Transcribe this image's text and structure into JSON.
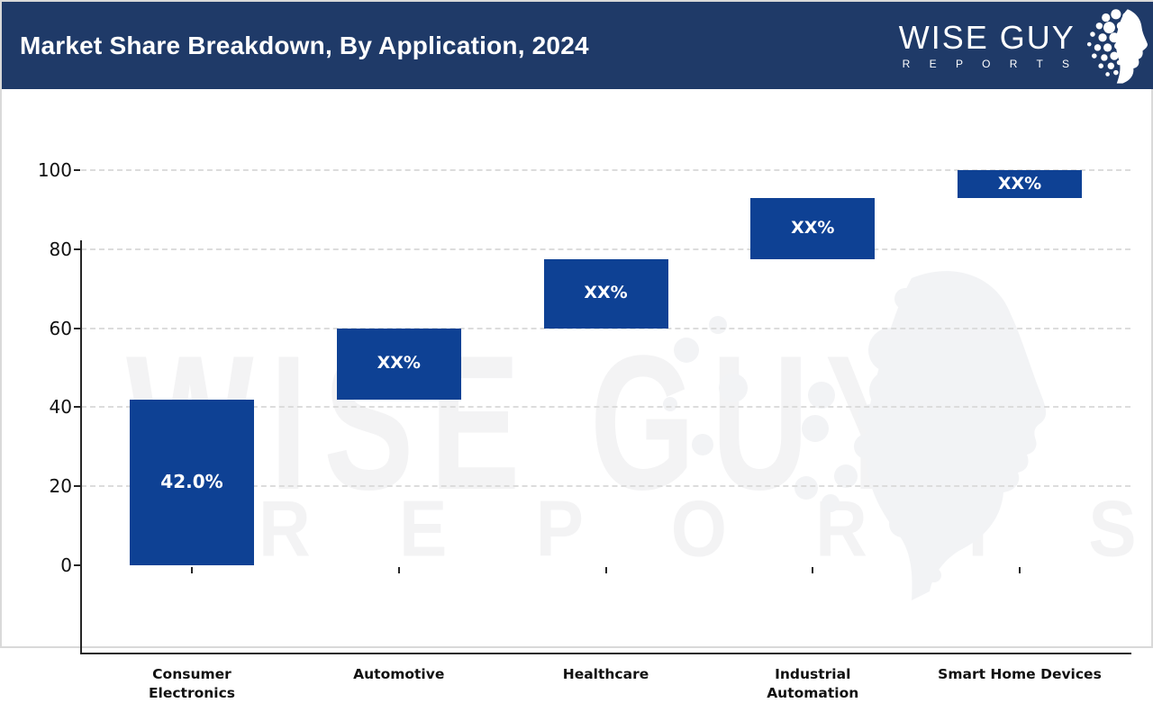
{
  "page": {
    "background": "#ffffff",
    "border_color": "#d9d9d9"
  },
  "header": {
    "background": "#1f3a68",
    "title": "Market Share Breakdown, By Application, 2024",
    "logo": {
      "line1": "WISE GUY",
      "line2": "R E P O R T S"
    }
  },
  "watermark": {
    "line1": "WISE GUY",
    "line2": "R E P O R T S"
  },
  "chart_data": {
    "type": "bar",
    "subtype": "waterfall",
    "title": "Market Share Breakdown, By Application, 2024",
    "categories": [
      "Consumer\nElectronics",
      "Automotive",
      "Healthcare",
      "Industrial\nAutomation",
      "Smart Home Devices"
    ],
    "segments": [
      {
        "category": "Consumer Electronics",
        "start": 0,
        "end": 42,
        "value": 42.0,
        "bar_label": "42.0%"
      },
      {
        "category": "Automotive",
        "start": 42,
        "end": 60,
        "value": 18.0,
        "bar_label": "XX%"
      },
      {
        "category": "Healthcare",
        "start": 60,
        "end": 77.5,
        "value": 17.5,
        "bar_label": "XX%"
      },
      {
        "category": "Industrial Automation",
        "start": 77.5,
        "end": 93,
        "value": 15.5,
        "bar_label": "XX%"
      },
      {
        "category": "Smart Home Devices",
        "start": 93,
        "end": 100,
        "value": 7.0,
        "bar_label": "XX%"
      }
    ],
    "ylim": [
      0,
      100
    ],
    "yticks": [
      0,
      20,
      40,
      60,
      80,
      100
    ],
    "grid": "horizontal dashed",
    "bar_color": "#0e4194",
    "bar_label_color": "#ffffff",
    "legend": "none"
  }
}
